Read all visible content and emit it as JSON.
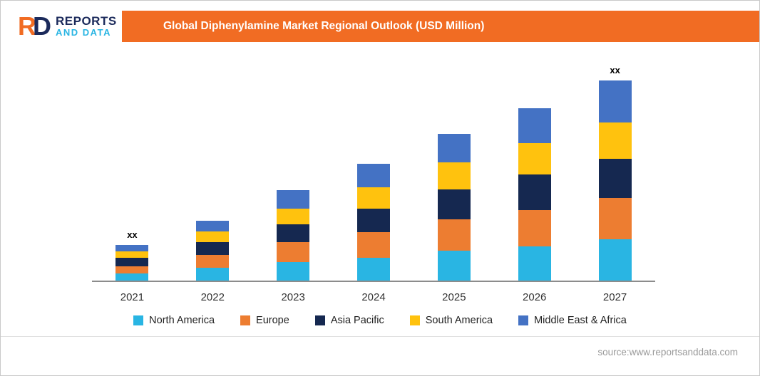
{
  "brand": {
    "line1": "REPORTS",
    "line2": "AND DATA",
    "mark_left": "R",
    "mark_right": "D"
  },
  "header": {
    "title": "Global Diphenylamine Market Regional Outlook (USD Million)"
  },
  "chart_data": {
    "type": "bar",
    "stacked": true,
    "title": "Global Diphenylamine Market Regional Outlook (USD Million)",
    "categories": [
      "2021",
      "2022",
      "2023",
      "2024",
      "2025",
      "2026",
      "2027"
    ],
    "series": [
      {
        "name": "North America",
        "color": "#29B5E3",
        "values": [
          10,
          18,
          26,
          32,
          42,
          48,
          58
        ]
      },
      {
        "name": "Europe",
        "color": "#ED7D31",
        "values": [
          10,
          18,
          28,
          36,
          45,
          52,
          59
        ]
      },
      {
        "name": "Asia Pacific",
        "color": "#152850",
        "values": [
          12,
          18,
          26,
          34,
          42,
          50,
          55
        ]
      },
      {
        "name": "South America",
        "color": "#FFC20E",
        "values": [
          9,
          15,
          22,
          30,
          38,
          44,
          52
        ]
      },
      {
        "name": "Middle East & Africa",
        "color": "#4472C4",
        "values": [
          9,
          16,
          26,
          33,
          40,
          50,
          59
        ]
      }
    ],
    "annotations": [
      {
        "category": "2021",
        "text": "xx"
      },
      {
        "category": "2027",
        "text": "xx"
      }
    ],
    "xlabel": "",
    "ylabel": "",
    "ylim": [
      0,
      300
    ],
    "grid": false,
    "legend_position": "bottom"
  },
  "footer": {
    "source": "source:www.reportsanddata.com"
  }
}
